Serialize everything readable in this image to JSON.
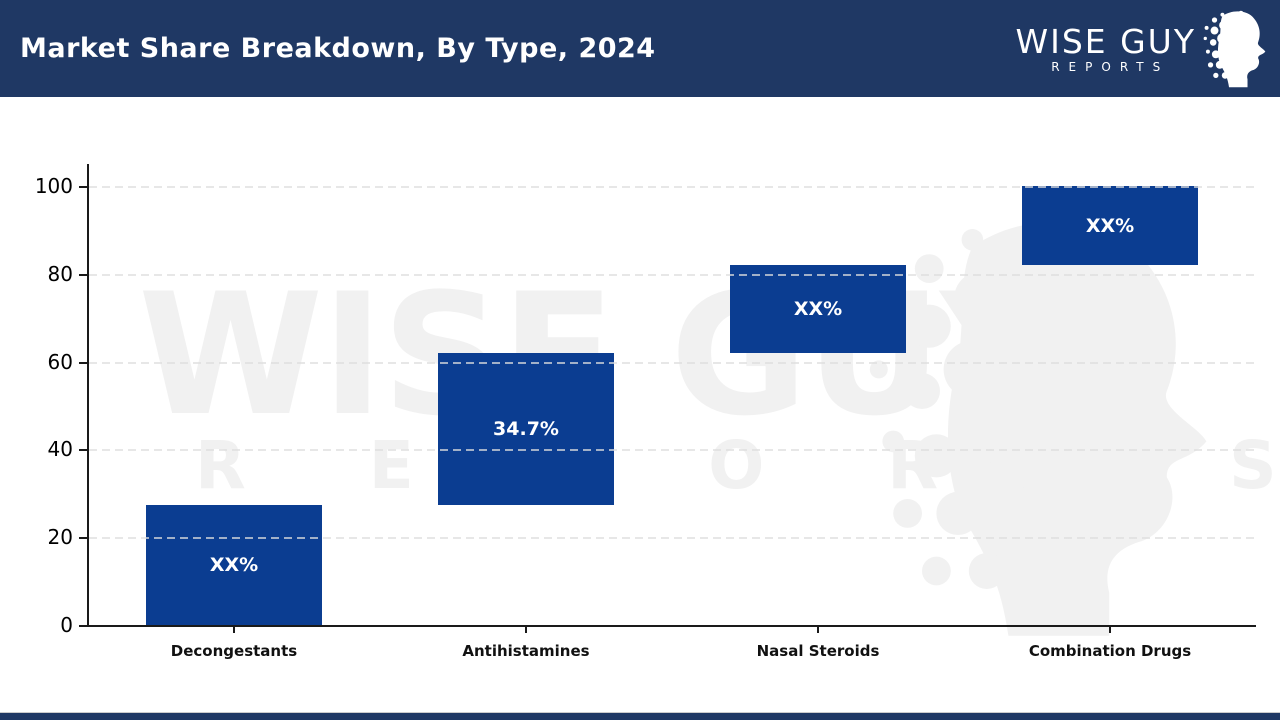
{
  "header": {
    "title": "Market Share Breakdown, By Type, 2024"
  },
  "logo": {
    "line1": "WISE GUY",
    "line2": "REPORTS"
  },
  "watermark": {
    "line1": "WISE GUY",
    "line2": "R E P O R T S"
  },
  "colors": {
    "header_navy": "#1f3864",
    "bar_blue": "#0b3d91",
    "grid_gray": "#e2e2e2",
    "watermark_gray": "#f1f1f1",
    "axis_black": "#1a1a1a"
  },
  "chart_data": {
    "type": "bar",
    "subtype": "waterfall",
    "title": "Market Share Breakdown, By Type, 2024",
    "xlabel": "",
    "ylabel": "",
    "categories": [
      "Decongestants",
      "Antihistamines",
      "Nasal Steroids",
      "Combination Drugs"
    ],
    "segments": [
      {
        "category": "Decongestants",
        "start": 0,
        "end": 27.3,
        "value": 27.3,
        "label": "XX%"
      },
      {
        "category": "Antihistamines",
        "start": 27.3,
        "end": 62,
        "value": 34.7,
        "label": "34.7%"
      },
      {
        "category": "Nasal Steroids",
        "start": 62,
        "end": 82,
        "value": 20,
        "label": "XX%"
      },
      {
        "category": "Combination Drugs",
        "start": 82,
        "end": 100,
        "value": 18,
        "label": "XX%"
      }
    ],
    "yticks": [
      0,
      20,
      40,
      60,
      80,
      100
    ],
    "ylim": [
      0,
      105
    ],
    "grid": "horizontal dashed",
    "legend": "none",
    "bar_color": "#0b3d91",
    "bar_label_color": "#ffffff"
  }
}
